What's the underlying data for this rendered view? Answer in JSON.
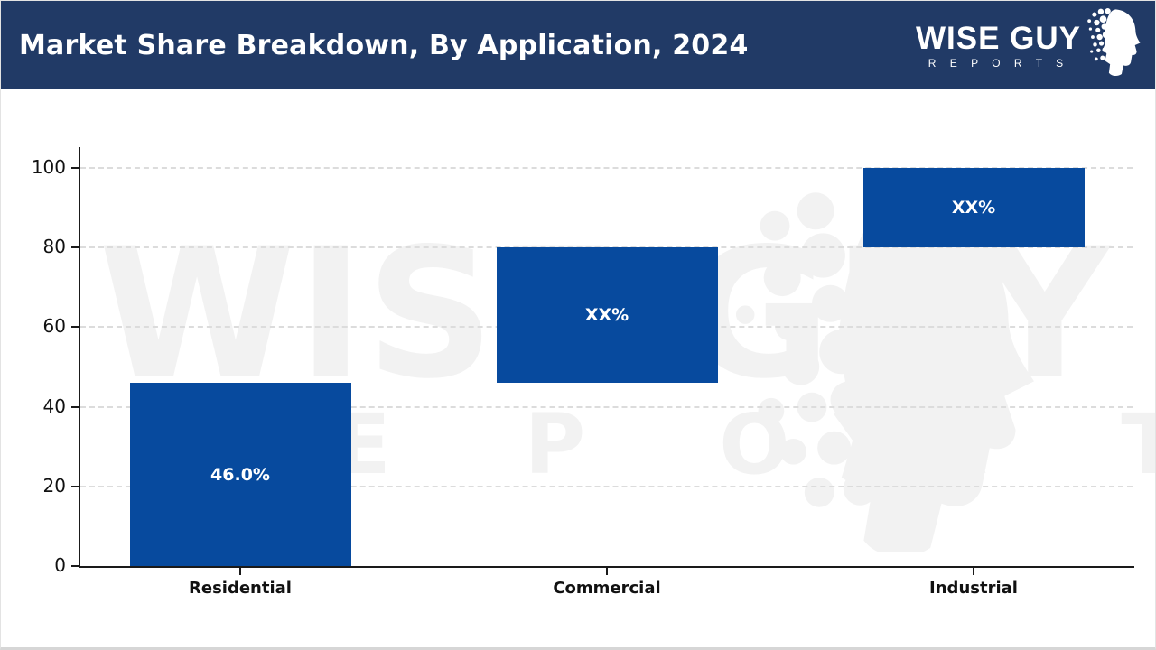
{
  "header": {
    "title": "Market Share Breakdown, By Application, 2024",
    "logo": {
      "wordmark": "WISE GUY",
      "subtext": "R E P O R T S"
    }
  },
  "watermark": {
    "wordmark": "WISE GUY",
    "subtext": "R E P O R T S"
  },
  "colors": {
    "header_bg": "#213a66",
    "bar": "#074a9e",
    "bar_label": "#ffffff",
    "grid": "#dcdcdc",
    "axis": "#1a1a1a",
    "tick_label": "#111111",
    "watermark": "#f2f2f2"
  },
  "chart_data": {
    "type": "bar",
    "subtype": "waterfall",
    "title": "Market Share Breakdown, By Application, 2024",
    "categories": [
      "Residential",
      "Commercial",
      "Industrial"
    ],
    "series": [
      {
        "name": "Market Share",
        "segments": [
          {
            "category": "Residential",
            "start": 0,
            "end": 46,
            "label": "46.0%"
          },
          {
            "category": "Commercial",
            "start": 46,
            "end": 80,
            "label": "XX%"
          },
          {
            "category": "Industrial",
            "start": 80,
            "end": 100,
            "label": "XX%"
          }
        ]
      }
    ],
    "xlabel": "",
    "ylabel": "",
    "ylim": [
      0,
      100
    ],
    "yticks": [
      0,
      20,
      40,
      60,
      80,
      100
    ],
    "grid": "horizontal-dashed",
    "legend": "none"
  }
}
